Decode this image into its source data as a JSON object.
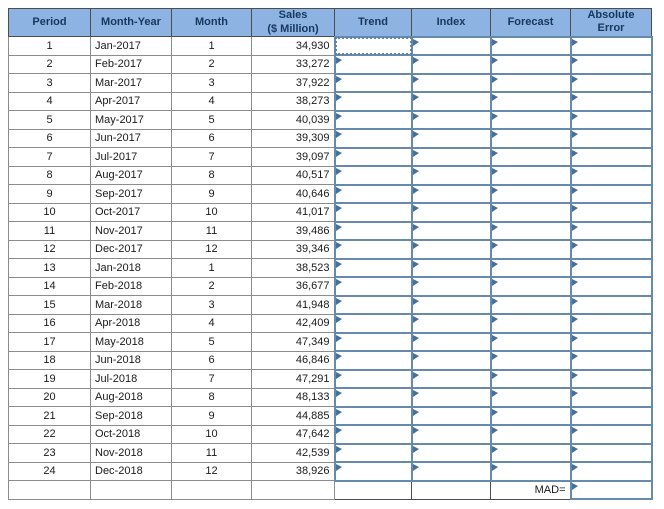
{
  "colors": {
    "header_bg": "#8DB3E2",
    "header_text": "#17375D",
    "cell_border_blue": "#6689AC",
    "marker_blue": "#41719C",
    "selection_dotted": "#5B84AB",
    "grid_gray": "#8C8C8C"
  },
  "table": {
    "headers": [
      {
        "id": "period",
        "label": "Period"
      },
      {
        "id": "month-year",
        "label": "Month-Year"
      },
      {
        "id": "month",
        "label": "Month"
      },
      {
        "id": "sales",
        "label": "Sales\n($ Million)"
      },
      {
        "id": "trend",
        "label": "Trend"
      },
      {
        "id": "index",
        "label": "Index"
      },
      {
        "id": "forecast",
        "label": "Forecast"
      },
      {
        "id": "abs-error",
        "label": "Absolute\nError"
      }
    ],
    "input_columns": [
      "trend",
      "index",
      "forecast",
      "abs-error"
    ],
    "rows": [
      {
        "period": "1",
        "month_year": "Jan-2017",
        "month": "1",
        "sales": "34,930"
      },
      {
        "period": "2",
        "month_year": "Feb-2017",
        "month": "2",
        "sales": "33,272"
      },
      {
        "period": "3",
        "month_year": "Mar-2017",
        "month": "3",
        "sales": "37,922"
      },
      {
        "period": "4",
        "month_year": "Apr-2017",
        "month": "4",
        "sales": "38,273"
      },
      {
        "period": "5",
        "month_year": "May-2017",
        "month": "5",
        "sales": "40,039"
      },
      {
        "period": "6",
        "month_year": "Jun-2017",
        "month": "6",
        "sales": "39,309"
      },
      {
        "period": "7",
        "month_year": "Jul-2017",
        "month": "7",
        "sales": "39,097"
      },
      {
        "period": "8",
        "month_year": "Aug-2017",
        "month": "8",
        "sales": "40,517"
      },
      {
        "period": "9",
        "month_year": "Sep-2017",
        "month": "9",
        "sales": "40,646"
      },
      {
        "period": "10",
        "month_year": "Oct-2017",
        "month": "10",
        "sales": "41,017"
      },
      {
        "period": "11",
        "month_year": "Nov-2017",
        "month": "11",
        "sales": "39,486"
      },
      {
        "period": "12",
        "month_year": "Dec-2017",
        "month": "12",
        "sales": "39,346"
      },
      {
        "period": "13",
        "month_year": "Jan-2018",
        "month": "1",
        "sales": "38,523"
      },
      {
        "period": "14",
        "month_year": "Feb-2018",
        "month": "2",
        "sales": "36,677"
      },
      {
        "period": "15",
        "month_year": "Mar-2018",
        "month": "3",
        "sales": "41,948"
      },
      {
        "period": "16",
        "month_year": "Apr-2018",
        "month": "4",
        "sales": "42,409"
      },
      {
        "period": "17",
        "month_year": "May-2018",
        "month": "5",
        "sales": "47,349"
      },
      {
        "period": "18",
        "month_year": "Jun-2018",
        "month": "6",
        "sales": "46,846"
      },
      {
        "period": "19",
        "month_year": "Jul-2018",
        "month": "7",
        "sales": "47,291"
      },
      {
        "period": "20",
        "month_year": "Aug-2018",
        "month": "8",
        "sales": "48,133"
      },
      {
        "period": "21",
        "month_year": "Sep-2018",
        "month": "9",
        "sales": "44,885"
      },
      {
        "period": "22",
        "month_year": "Oct-2018",
        "month": "10",
        "sales": "47,642"
      },
      {
        "period": "23",
        "month_year": "Nov-2018",
        "month": "11",
        "sales": "42,539"
      },
      {
        "period": "24",
        "month_year": "Dec-2018",
        "month": "12",
        "sales": "38,926"
      }
    ],
    "footer": {
      "mad_label": "MAD="
    },
    "selection": {
      "column": "trend",
      "row": 1,
      "style": "dotted-marquee"
    }
  }
}
